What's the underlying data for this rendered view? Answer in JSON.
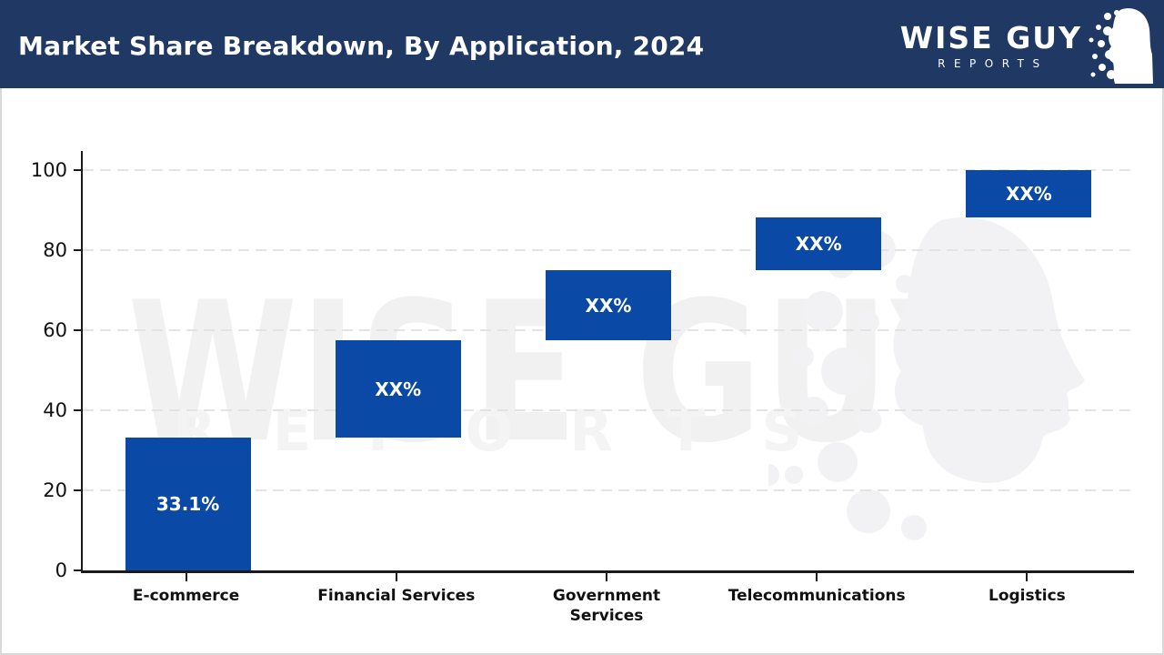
{
  "header": {
    "title": "Market Share Breakdown, By Application, 2024",
    "brand": {
      "name": "WISE GUY",
      "subname": "REPORTS"
    }
  },
  "watermark": {
    "line1": "WISE GUY",
    "line2": "REPORTS"
  },
  "chart_data": {
    "type": "bar",
    "variant": "stacked-waterfall",
    "title": "Market Share Breakdown, By Application, 2024",
    "categories": [
      {
        "name": "E-commerce",
        "lines": [
          "E-commerce"
        ]
      },
      {
        "name": "Financial Services",
        "lines": [
          "Financial Services"
        ]
      },
      {
        "name": "Government Services",
        "lines": [
          "Government",
          "Services"
        ]
      },
      {
        "name": "Telecommunications",
        "lines": [
          "Telecommunications"
        ]
      },
      {
        "name": "Logistics",
        "lines": [
          "Logistics"
        ]
      }
    ],
    "segments": [
      {
        "category": "E-commerce",
        "label": "33.1%",
        "start": 0,
        "end": 33.1
      },
      {
        "category": "Financial Services",
        "label": "XX%",
        "start": 33.1,
        "end": 57.4
      },
      {
        "category": "Government Services",
        "label": "XX%",
        "start": 57.4,
        "end": 75.1
      },
      {
        "category": "Telecommunications",
        "label": "XX%",
        "start": 75.1,
        "end": 88.1
      },
      {
        "category": "Logistics",
        "label": "XX%",
        "start": 88.1,
        "end": 100
      }
    ],
    "ylim": [
      0,
      100
    ],
    "yticks": [
      0,
      20,
      40,
      60,
      80,
      100
    ],
    "grid": {
      "horizontal": true,
      "style": "dashed"
    },
    "legend": "none",
    "colors": {
      "bar": "#0a4aa6",
      "bar_label": "#ffffff",
      "axis": "#1a1a1a",
      "grid": "#e3e3e3",
      "tick_label": "#111111",
      "header_bg": "#1f3864",
      "watermark": "#f2f2f4"
    }
  }
}
